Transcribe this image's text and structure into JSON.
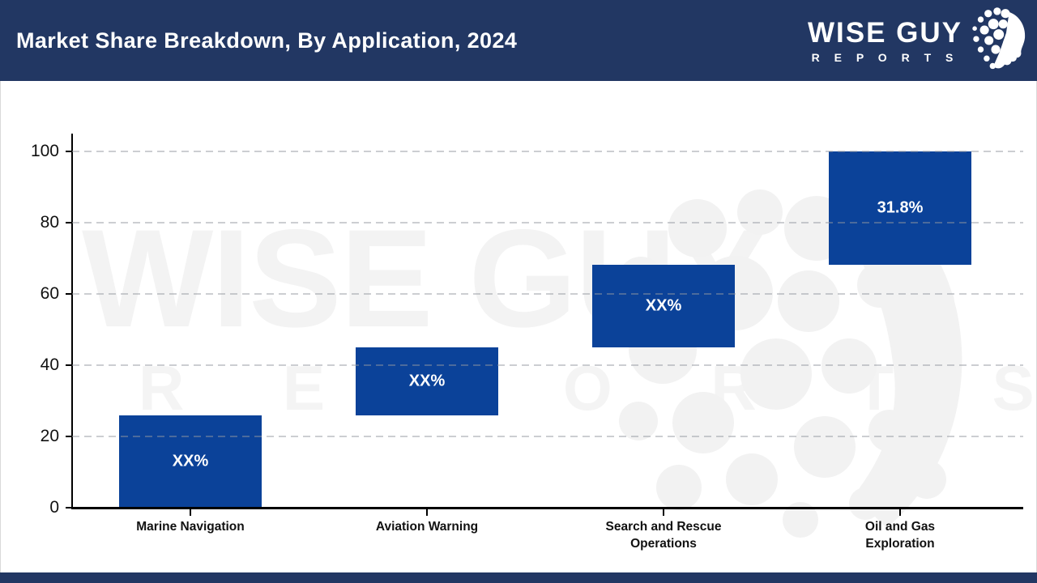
{
  "header": {
    "title": "Market Share Breakdown, By Application, 2024",
    "logo": {
      "brand": "WISE GUY",
      "brand_sub": "R E P O R T S"
    }
  },
  "watermark": {
    "brand": "WISE GUY",
    "brand_sub": "R E P O R T S"
  },
  "chart_data": {
    "type": "bar",
    "variant": "floating-segment-waterfall",
    "title": "Market Share Breakdown, By Application, 2024",
    "categories": [
      "Marine Navigation",
      "Aviation Warning",
      "Search and Rescue Operations",
      "Oil and Gas Exploration"
    ],
    "category_label_lines": [
      [
        "Marine Navigation"
      ],
      [
        "Aviation Warning"
      ],
      [
        "Search and Rescue",
        "Operations"
      ],
      [
        "Oil and Gas",
        "Exploration"
      ]
    ],
    "bars": [
      {
        "category": "Marine Navigation",
        "start": 0,
        "end": 26,
        "size": 26,
        "label": "XX%"
      },
      {
        "category": "Aviation Warning",
        "start": 26,
        "end": 45,
        "size": 19,
        "label": "XX%"
      },
      {
        "category": "Search and Rescue Operations",
        "start": 45,
        "end": 68.2,
        "size": 23.2,
        "label": "XX%"
      },
      {
        "category": "Oil and Gas Exploration",
        "start": 68.2,
        "end": 100,
        "size": 31.8,
        "label": "31.8%"
      }
    ],
    "xlabel": "",
    "ylabel": "",
    "ylim": [
      0,
      105
    ],
    "yticks": [
      0,
      20,
      40,
      60,
      80,
      100
    ],
    "grid": {
      "horizontal": true,
      "style": "dashed"
    },
    "legend": {
      "visible": false
    }
  },
  "colors": {
    "header_bg": "#223763",
    "footer_bg": "#223763",
    "bar_fill": "#0b4299",
    "bar_label_text": "#ffffff",
    "title_text": "#ffffff",
    "axis_line": "#000000",
    "tick_text": "#111111",
    "grid_dash": "#c9cace",
    "watermark_gray": "#f3f3f3",
    "background": "#ffffff"
  }
}
